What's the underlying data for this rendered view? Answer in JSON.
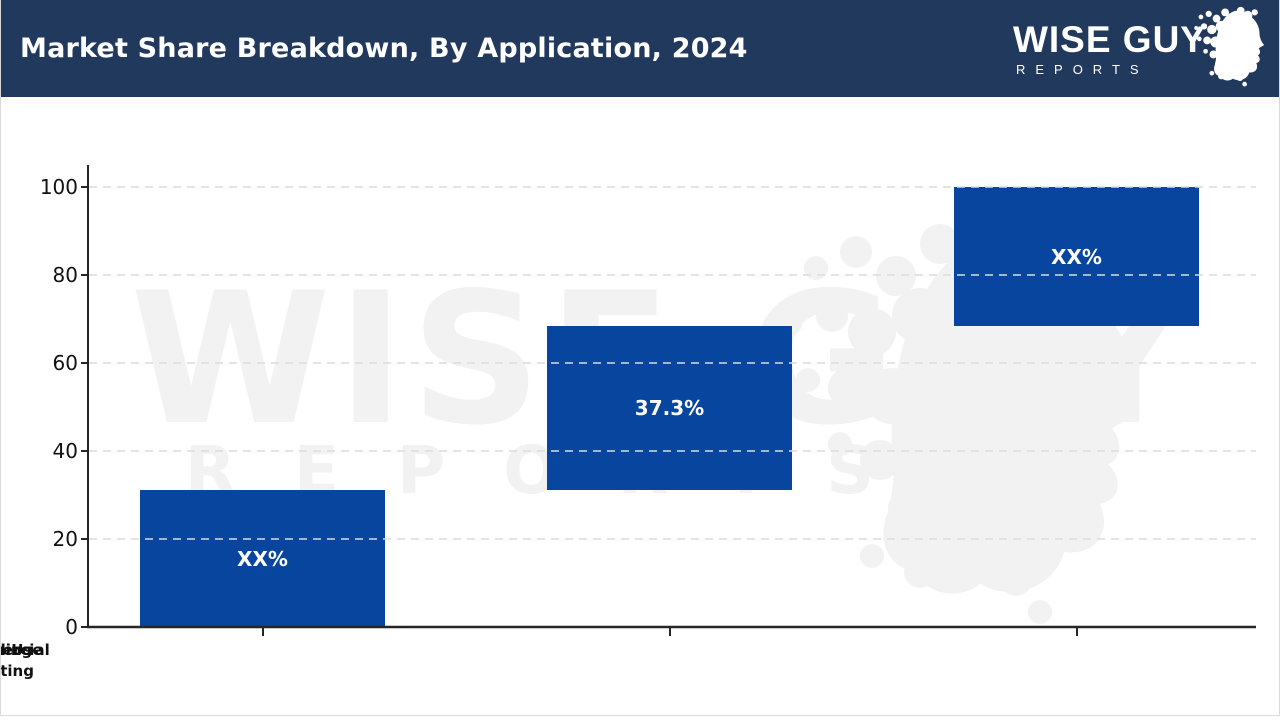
{
  "header": {
    "title": "Market Share Breakdown, By Application, 2024",
    "bg_color": "#22395e",
    "logo": {
      "line1": "WISE GUY",
      "line2": "REPORTS"
    }
  },
  "watermark": {
    "line1": "WISE GUY",
    "line2": "REPORTS"
  },
  "chart_data": {
    "type": "bar",
    "subtype": "waterfall",
    "title": "Market Share Breakdown, By Application, 2024",
    "categories": [
      "Office Use",
      "Commercial Printing",
      "Binding"
    ],
    "series": [
      {
        "name": "Market share (%)",
        "segments": [
          {
            "category": "Office Use",
            "start": 0,
            "end": 31.1,
            "label": "XX%"
          },
          {
            "category": "Commercial Printing",
            "start": 31.1,
            "end": 68.4,
            "label": "37.3%"
          },
          {
            "category": "Binding",
            "start": 68.4,
            "end": 100,
            "label": "XX%"
          }
        ]
      }
    ],
    "ylim": [
      0,
      100
    ],
    "yticks": [
      0,
      20,
      40,
      60,
      80,
      100
    ],
    "grid": {
      "axis": "y",
      "style": "dashed",
      "color": "#dcdcdc"
    },
    "axis_color": "#262626",
    "bar_color": "#07459e",
    "bar_label_color": "#ffffff",
    "legend": "none"
  }
}
